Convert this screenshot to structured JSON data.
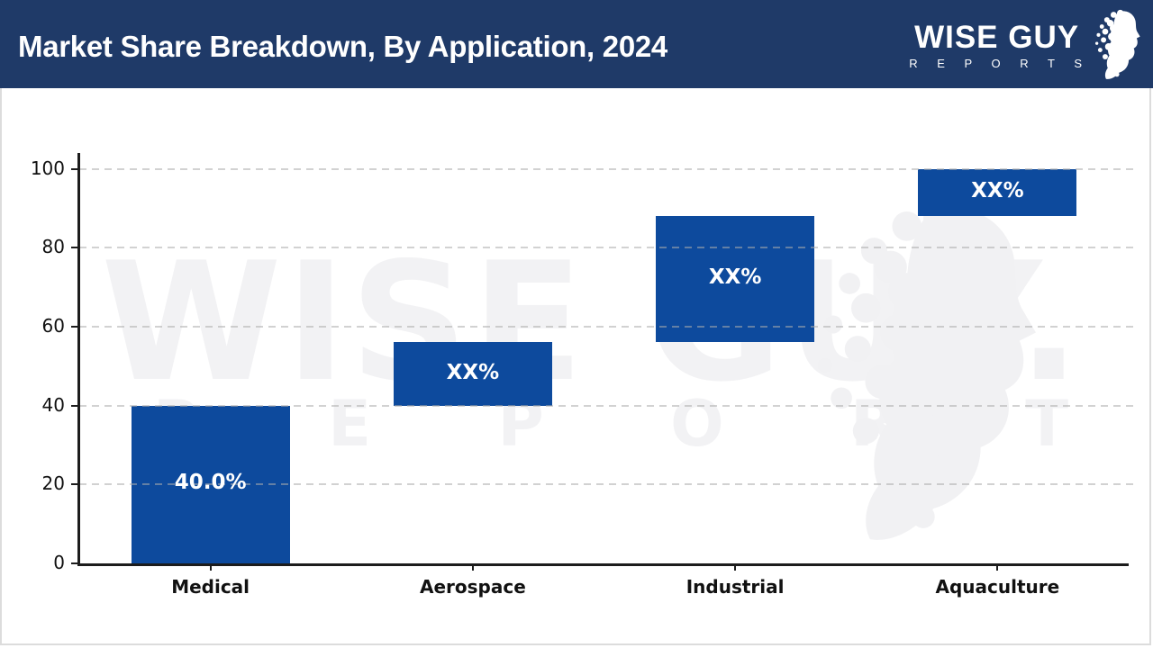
{
  "header": {
    "title": "Market Share Breakdown, By Application, 2024",
    "logo": {
      "line1": "WISE GUY",
      "line2": "R E P O R T S"
    }
  },
  "watermark": {
    "line1": "WISE GUY.",
    "line2": "R E P O R T S"
  },
  "chart_data": {
    "type": "bar",
    "subtype": "waterfall",
    "title": "Market Share Breakdown, By Application, 2024",
    "categories": [
      "Medical",
      "Aerospace",
      "Industrial",
      "Aquaculture"
    ],
    "series": [
      {
        "name": "Market Share (%)",
        "segments": [
          {
            "category": "Medical",
            "start": 0,
            "end": 40,
            "label": "40.0%"
          },
          {
            "category": "Aerospace",
            "start": 40,
            "end": 56,
            "label": "XX%"
          },
          {
            "category": "Industrial",
            "start": 56,
            "end": 88,
            "label": "XX%"
          },
          {
            "category": "Aquaculture",
            "start": 88,
            "end": 100,
            "label": "XX%"
          }
        ]
      }
    ],
    "yticks": [
      0,
      20,
      40,
      60,
      80,
      100
    ],
    "ylim": [
      0,
      104
    ],
    "xlabel": "",
    "ylabel": "",
    "grid": "horizontal dashed, drawn above bars",
    "legend": "none"
  },
  "colors": {
    "header_bg": "#1f3a68",
    "bar": "#0d4a9d",
    "axis": "#1c1c1c",
    "grid": "#acacac",
    "bar_label": "#ffffff",
    "watermark": "#f2f2f4",
    "frame_border": "#dcdcdc"
  }
}
